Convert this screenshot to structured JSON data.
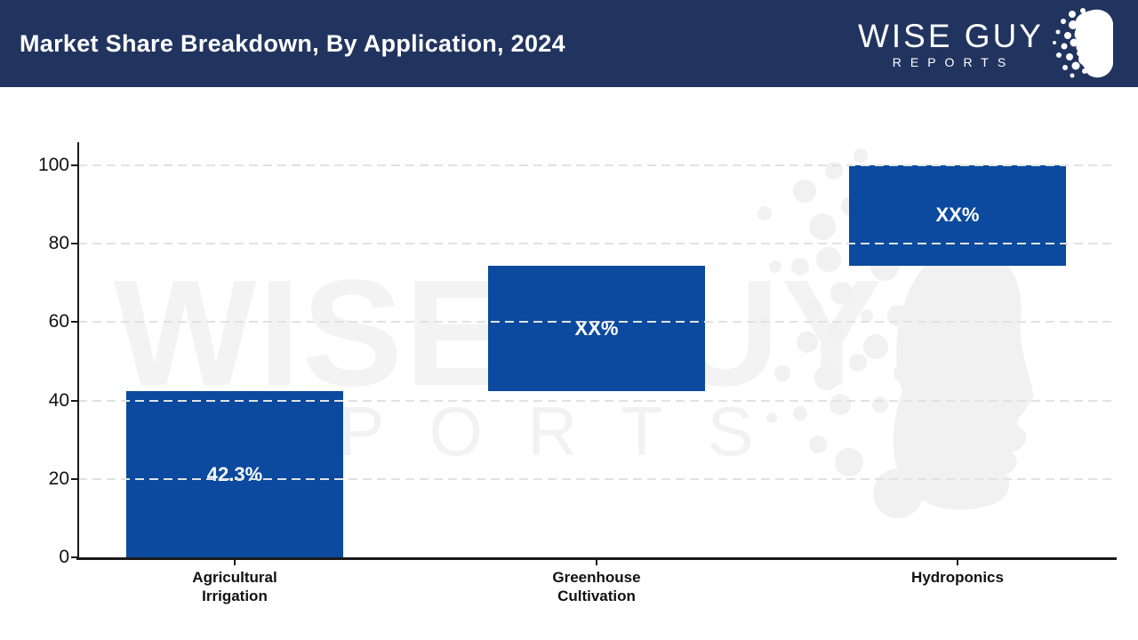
{
  "colors": {
    "header_bg": "#21345f",
    "bar": "#0b4a9e",
    "grid": "#e2e2e2",
    "axis": "#1a1a1a",
    "watermark": "#f2f2f2",
    "bar_label": "#ffffff"
  },
  "header": {
    "title": "Market Share Breakdown, By Application, 2024",
    "logo": {
      "line1": "WISE GUY",
      "line2": "REPORTS"
    }
  },
  "watermark": {
    "line1": "WISE GUY",
    "line2": "REPORTS"
  },
  "chart_data": {
    "type": "bar",
    "variant": "waterfall",
    "title": "Market Share Breakdown, By Application, 2024",
    "categories": [
      "Agricultural Irrigation",
      "Greenhouse Cultivation",
      "Hydroponics"
    ],
    "category_lines": [
      [
        "Agricultural",
        "Irrigation"
      ],
      [
        "Greenhouse",
        "Cultivation"
      ],
      [
        "Hydroponics"
      ]
    ],
    "segments": [
      {
        "category": "Agricultural Irrigation",
        "start": 0,
        "end": 42.3,
        "label": "42.3%"
      },
      {
        "category": "Greenhouse Cultivation",
        "start": 42.3,
        "end": 74.4,
        "label": "XX%"
      },
      {
        "category": "Hydroponics",
        "start": 74.4,
        "end": 100,
        "label": "XX%"
      }
    ],
    "ylim": [
      0,
      100
    ],
    "yticks": [
      0,
      20,
      40,
      60,
      80,
      100
    ],
    "grid": "horizontal-dashed",
    "legend": "none",
    "bar_color": "#0b4a9e",
    "bar_label_color": "#ffffff"
  }
}
